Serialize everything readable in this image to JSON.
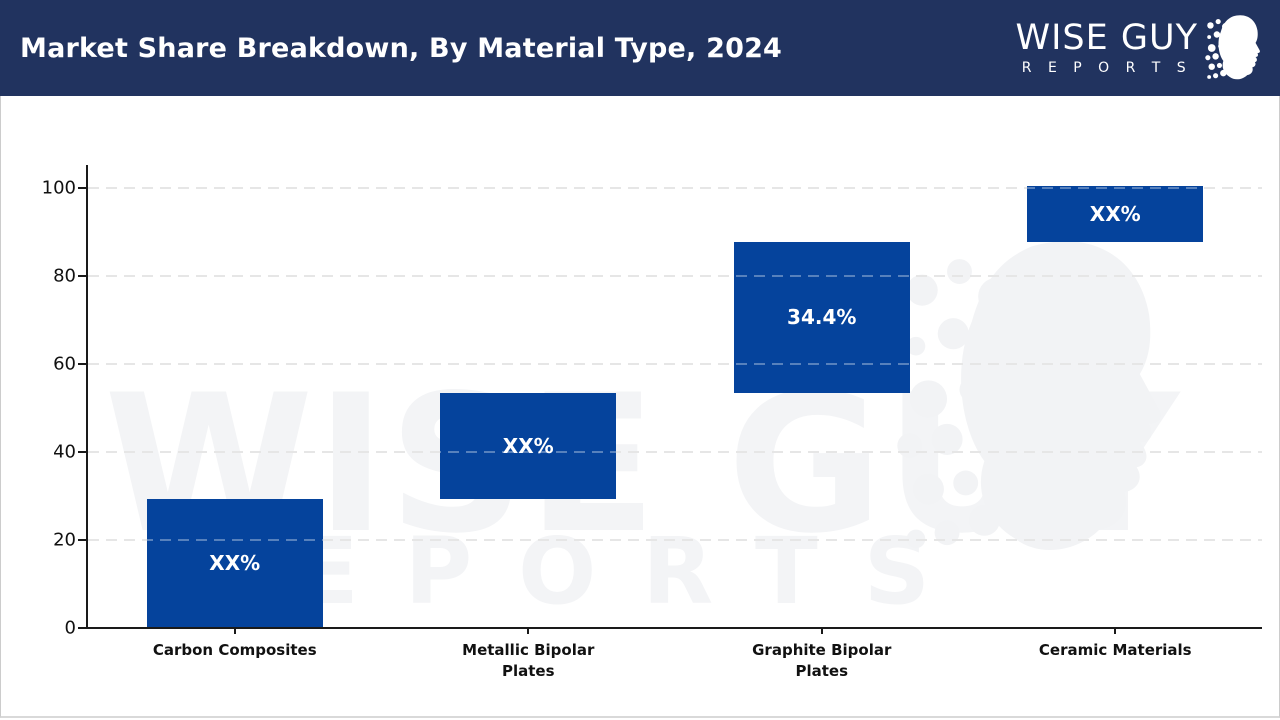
{
  "header": {
    "title": "Market Share Breakdown, By Material Type, 2024",
    "logo": {
      "wordmark": "WISE GUY",
      "subtext": "R E P O R T S"
    }
  },
  "watermark": {
    "wordmark": "WISE GUY",
    "subtext": "REPORTS"
  },
  "colors": {
    "header_bg": "#21335F",
    "bar_blue": "#05439C",
    "grid_gray": "#d9d9d9",
    "watermark_gray": "#f3f4f6"
  },
  "chart_data": {
    "type": "bar",
    "subtype": "waterfall",
    "title": "Market Share Breakdown, By Material Type, 2024",
    "categories": [
      "Carbon Composites",
      "Metallic Bipolar Plates",
      "Graphite Bipolar Plates",
      "Ceramic Materials"
    ],
    "category_display": [
      "Carbon Composites",
      "Metallic Bipolar\nPlates",
      "Graphite Bipolar\nPlates",
      "Ceramic Materials"
    ],
    "bars": [
      {
        "category": "Carbon Composites",
        "base": 0,
        "value": 29.1,
        "label": "XX%"
      },
      {
        "category": "Metallic Bipolar Plates",
        "base": 29.1,
        "value": 24.1,
        "label": "XX%"
      },
      {
        "category": "Graphite Bipolar Plates",
        "base": 53.2,
        "value": 34.4,
        "label": "34.4%"
      },
      {
        "category": "Ceramic Materials",
        "base": 87.6,
        "value": 12.6,
        "label": "XX%"
      }
    ],
    "ylabel": "",
    "xlabel": "",
    "ylim": [
      0,
      100
    ],
    "yticks": [
      0,
      20,
      40,
      60,
      80,
      100
    ],
    "grid": "dashed-horizontal",
    "legend": "none",
    "bar_color": "#05439C"
  }
}
